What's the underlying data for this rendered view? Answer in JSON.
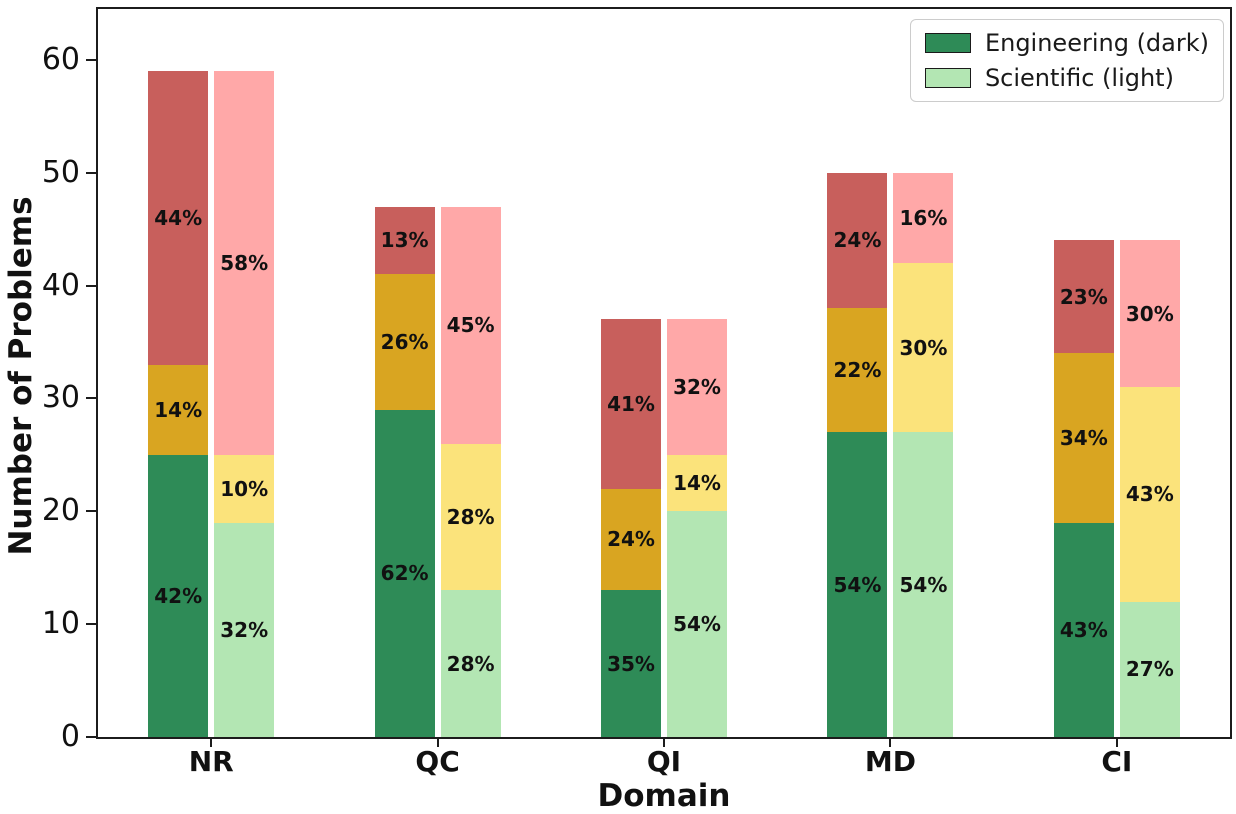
{
  "chart_data": {
    "type": "bar",
    "variant": "grouped-stacked",
    "title": "",
    "xlabel": "Domain",
    "ylabel": "Number of Problems",
    "ylim": [
      0,
      64.5
    ],
    "yticks": [
      0,
      10,
      20,
      30,
      40,
      50,
      60
    ],
    "grid": false,
    "categories": [
      "NR",
      "QC",
      "QI",
      "MD",
      "CI"
    ],
    "legend": {
      "position": "top-right",
      "entries": [
        {
          "name": "engineering",
          "label": "Engineering (dark)",
          "color": "#2e8b57"
        },
        {
          "name": "scientific",
          "label": "Scientific (light)",
          "color": "#b3e6b3"
        }
      ]
    },
    "series_colors": {
      "engineering": [
        "#2e8b57",
        "#d9a521",
        "#c85f5c"
      ],
      "scientific": [
        "#b3e6b3",
        "#fbe37b",
        "#ffa8a8"
      ]
    },
    "groups": [
      {
        "category": "NR",
        "engineering": {
          "total": 59,
          "segments": [
            {
              "value": 25,
              "label": "42%"
            },
            {
              "value": 8,
              "label": "14%"
            },
            {
              "value": 26,
              "label": "44%"
            }
          ]
        },
        "scientific": {
          "total": 59,
          "segments": [
            {
              "value": 19,
              "label": "32%"
            },
            {
              "value": 6,
              "label": "10%"
            },
            {
              "value": 34,
              "label": "58%"
            }
          ]
        }
      },
      {
        "category": "QC",
        "engineering": {
          "total": 47,
          "segments": [
            {
              "value": 29,
              "label": "62%"
            },
            {
              "value": 12,
              "label": "26%"
            },
            {
              "value": 6,
              "label": "13%"
            }
          ]
        },
        "scientific": {
          "total": 47,
          "segments": [
            {
              "value": 13,
              "label": "28%"
            },
            {
              "value": 13,
              "label": "28%"
            },
            {
              "value": 21,
              "label": "45%"
            }
          ]
        }
      },
      {
        "category": "QI",
        "engineering": {
          "total": 37,
          "segments": [
            {
              "value": 13,
              "label": "35%"
            },
            {
              "value": 9,
              "label": "24%"
            },
            {
              "value": 15,
              "label": "41%"
            }
          ]
        },
        "scientific": {
          "total": 37,
          "segments": [
            {
              "value": 20,
              "label": "54%"
            },
            {
              "value": 5,
              "label": "14%"
            },
            {
              "value": 12,
              "label": "32%"
            }
          ]
        }
      },
      {
        "category": "MD",
        "engineering": {
          "total": 50,
          "segments": [
            {
              "value": 27,
              "label": "54%"
            },
            {
              "value": 11,
              "label": "22%"
            },
            {
              "value": 12,
              "label": "24%"
            }
          ]
        },
        "scientific": {
          "total": 50,
          "segments": [
            {
              "value": 27,
              "label": "54%"
            },
            {
              "value": 15,
              "label": "30%"
            },
            {
              "value": 8,
              "label": "16%"
            }
          ]
        }
      },
      {
        "category": "CI",
        "engineering": {
          "total": 44,
          "segments": [
            {
              "value": 19,
              "label": "43%"
            },
            {
              "value": 15,
              "label": "34%"
            },
            {
              "value": 10,
              "label": "23%"
            }
          ]
        },
        "scientific": {
          "total": 44,
          "segments": [
            {
              "value": 12,
              "label": "27%"
            },
            {
              "value": 19,
              "label": "43%"
            },
            {
              "value": 13,
              "label": "30%"
            }
          ]
        }
      }
    ]
  }
}
